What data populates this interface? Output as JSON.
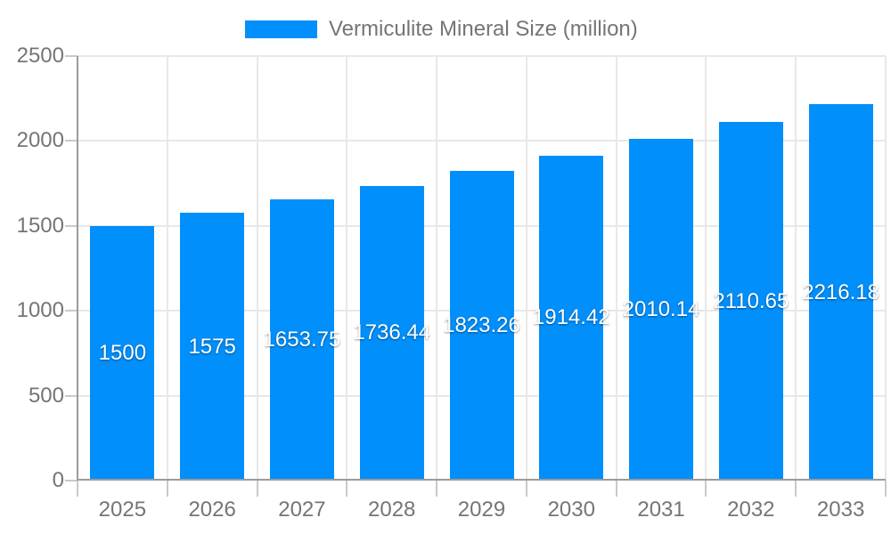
{
  "chart_data": {
    "type": "bar",
    "title": "Vermiculite Mineral Size (million)",
    "legend": {
      "label": "Vermiculite Mineral Size (million)",
      "position": "top",
      "swatch_color": "#008FFB"
    },
    "categories": [
      "2025",
      "2026",
      "2027",
      "2028",
      "2029",
      "2030",
      "2031",
      "2032",
      "2033"
    ],
    "values": [
      1500,
      1575,
      1653.75,
      1736.44,
      1823.26,
      1914.42,
      2010.14,
      2110.65,
      2216.18
    ],
    "value_labels": [
      "1500",
      "1575",
      "1653.75",
      "1736.44",
      "1823.26",
      "1914.42",
      "2010.14",
      "2110.65",
      "2216.18"
    ],
    "xlabel": "",
    "ylabel": "",
    "ylim": [
      0,
      2500
    ],
    "yticks": [
      0,
      500,
      1000,
      1500,
      2000,
      2500
    ],
    "grid": true,
    "legend_position": "top-center",
    "bar_color": "#008FFB",
    "text_color": "#757575",
    "grid_color": "#e8e8e8",
    "axis_color": "#9b9b9b",
    "tick_color": "#c9c9c9",
    "value_label_color": "#ffffff"
  }
}
